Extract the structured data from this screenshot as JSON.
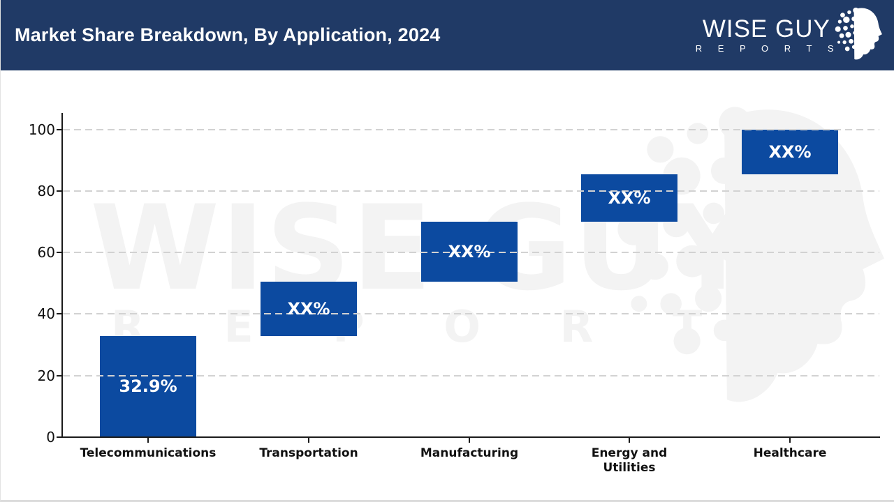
{
  "header": {
    "title": "Market Share Breakdown, By Application, 2024",
    "background_color": "#203A66",
    "logo": {
      "wordmark": "WISE GUY",
      "subtext": "R E P O R T S"
    }
  },
  "watermark": {
    "wordmark": "WISE GUY",
    "subtext": "R E P O R T S"
  },
  "colors": {
    "bar": "#0C4AA0",
    "bar_label": "#FFFFFF",
    "header_navy": "#203A66",
    "gridline": "#D2D2D2",
    "axis": "#1A1A1A",
    "watermark": "#F3F3F3"
  },
  "chart_data": {
    "type": "bar",
    "variant": "waterfall",
    "title": "Market Share Breakdown, By Application, 2024",
    "categories": [
      "Telecommunications",
      "Transportation",
      "Manufacturing",
      "Energy and Utilities",
      "Healthcare"
    ],
    "category_tick_labels": [
      "Telecommunications",
      "Transportation",
      "Manufacturing",
      "Energy and\nUtilities",
      "Healthcare"
    ],
    "segments": [
      {
        "category": "Telecommunications",
        "start": 0,
        "end": 32.9,
        "label": "32.9%"
      },
      {
        "category": "Transportation",
        "start": 32.9,
        "end": 50.4,
        "label": "XX%"
      },
      {
        "category": "Manufacturing",
        "start": 50.4,
        "end": 70.0,
        "label": "XX%"
      },
      {
        "category": "Energy and Utilities",
        "start": 70.0,
        "end": 85.5,
        "label": "XX%"
      },
      {
        "category": "Healthcare",
        "start": 85.5,
        "end": 100.0,
        "label": "XX%"
      }
    ],
    "yticks": [
      0,
      20,
      40,
      60,
      80,
      100
    ],
    "ylim": [
      0,
      105
    ],
    "xlabel": "",
    "ylabel": "",
    "grid": "horizontal dashed",
    "legend": false
  }
}
